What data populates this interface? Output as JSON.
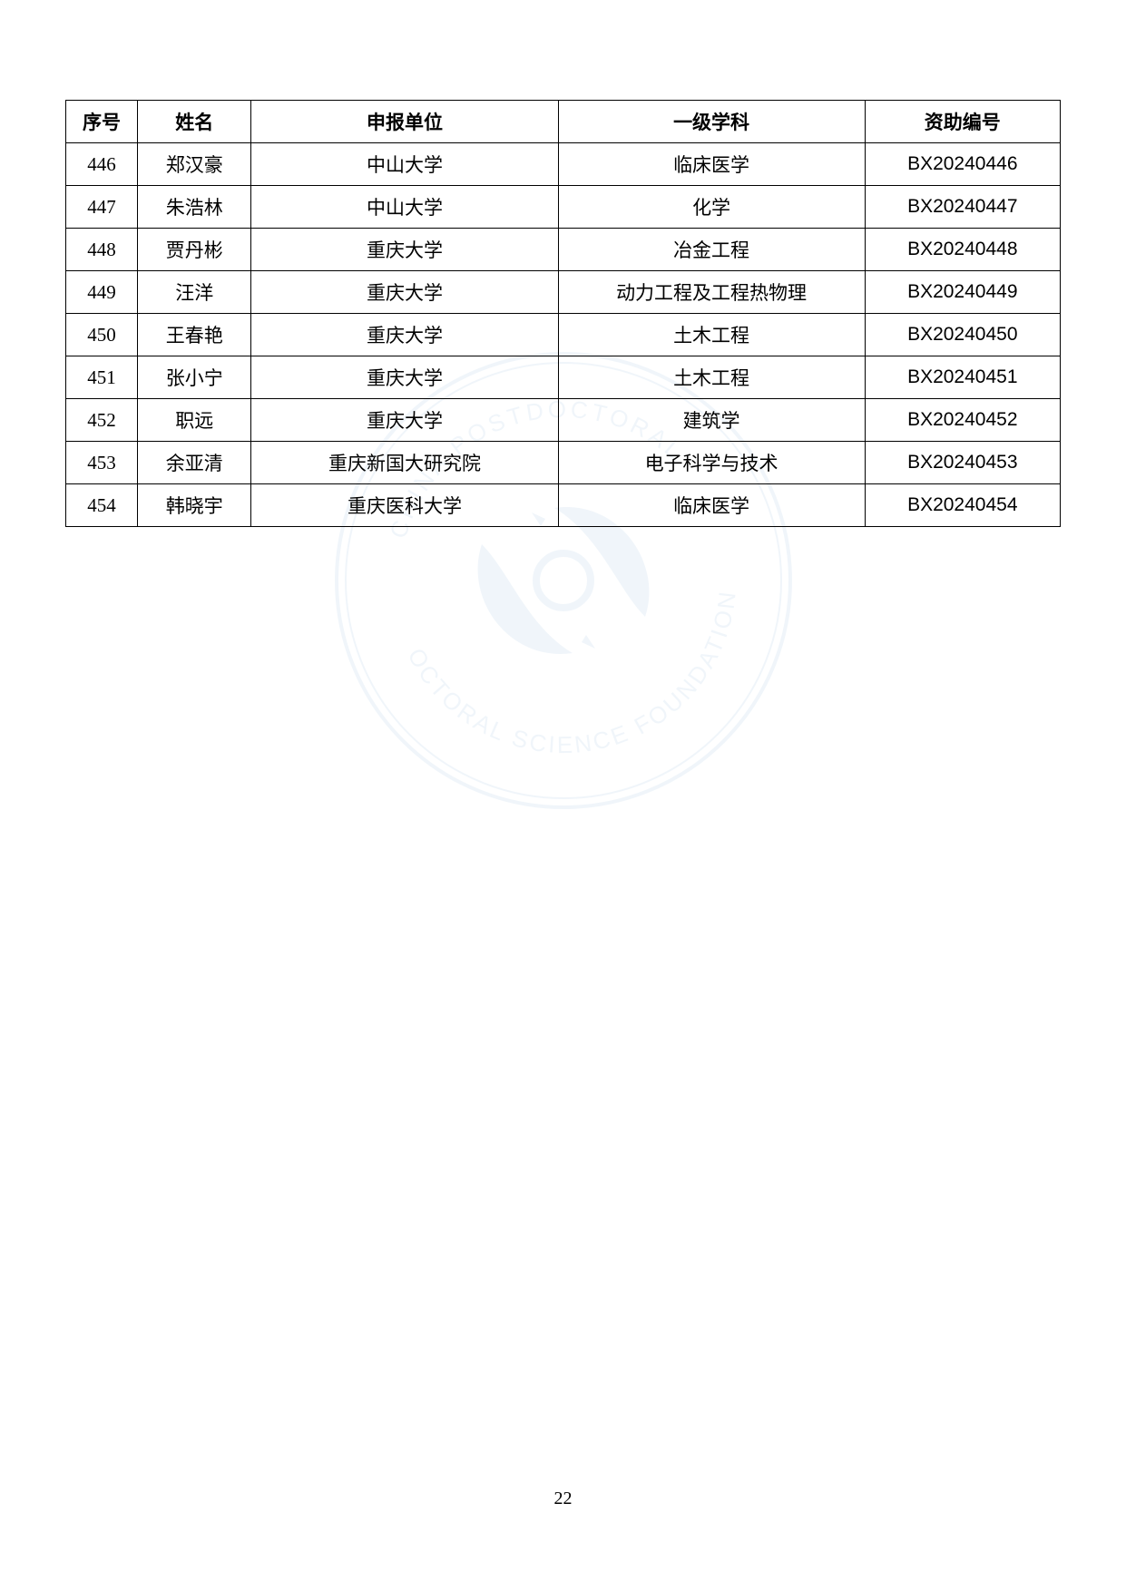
{
  "table": {
    "columns": [
      {
        "key": "seq",
        "label": "序号",
        "class": "col-seq"
      },
      {
        "key": "name",
        "label": "姓名",
        "class": "col-name"
      },
      {
        "key": "unit",
        "label": "申报单位",
        "class": "col-unit"
      },
      {
        "key": "subject",
        "label": "一级学科",
        "class": "col-subject"
      },
      {
        "key": "code",
        "label": "资助编号",
        "class": "col-code"
      }
    ],
    "rows": [
      {
        "seq": "446",
        "name": "郑汉豪",
        "unit": "中山大学",
        "subject": "临床医学",
        "code": "BX20240446"
      },
      {
        "seq": "447",
        "name": "朱浩林",
        "unit": "中山大学",
        "subject": "化学",
        "code": "BX20240447"
      },
      {
        "seq": "448",
        "name": "贾丹彬",
        "unit": "重庆大学",
        "subject": "冶金工程",
        "code": "BX20240448"
      },
      {
        "seq": "449",
        "name": "汪洋",
        "unit": "重庆大学",
        "subject": "动力工程及工程热物理",
        "code": "BX20240449"
      },
      {
        "seq": "450",
        "name": "王春艳",
        "unit": "重庆大学",
        "subject": "土木工程",
        "code": "BX20240450"
      },
      {
        "seq": "451",
        "name": "张小宁",
        "unit": "重庆大学",
        "subject": "土木工程",
        "code": "BX20240451"
      },
      {
        "seq": "452",
        "name": "职远",
        "unit": "重庆大学",
        "subject": "建筑学",
        "code": "BX20240452"
      },
      {
        "seq": "453",
        "name": "余亚清",
        "unit": "重庆新国大研究院",
        "subject": "电子科学与技术",
        "code": "BX20240453"
      },
      {
        "seq": "454",
        "name": "韩晓宇",
        "unit": "重庆医科大学",
        "subject": "临床医学",
        "code": "BX20240454"
      }
    ]
  },
  "watermark": {
    "text_top": "CHINA POSTDOCTORAL SCIENCE FOUNDATION",
    "color": "#4a8fc7"
  },
  "page_number": "22"
}
